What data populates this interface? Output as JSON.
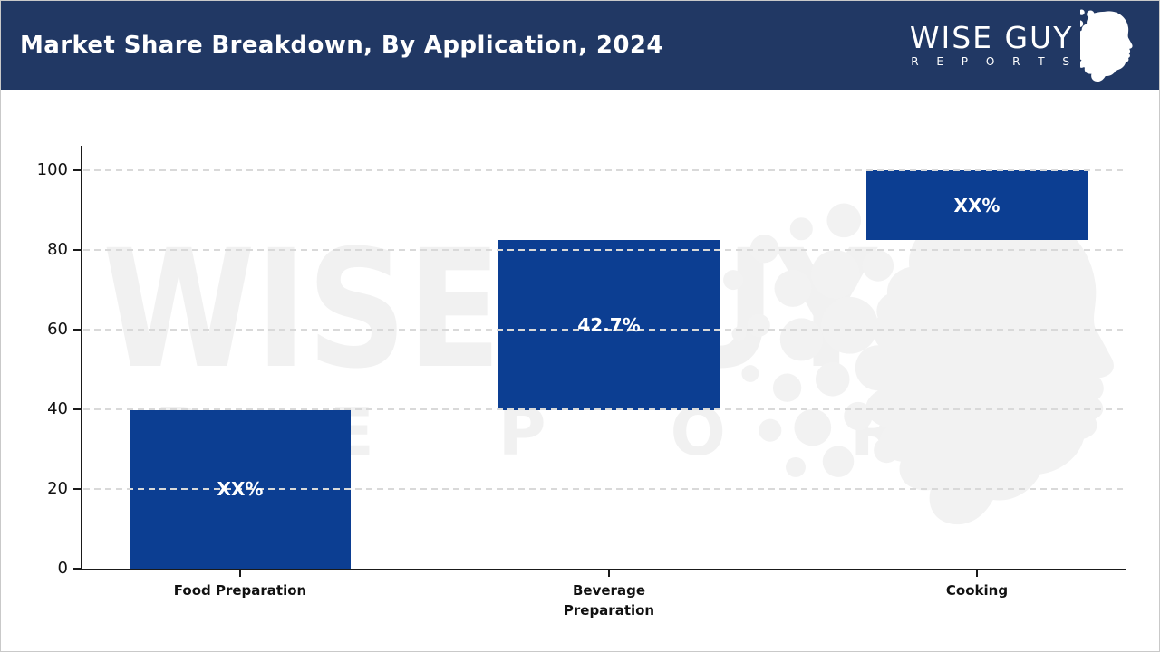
{
  "header": {
    "title": "Market Share Breakdown, By Application, 2024",
    "logo": {
      "brand_line1": "WISE GUY",
      "brand_line2": "R E P O R T S"
    }
  },
  "watermark": {
    "big_text": "WISE GUY",
    "small_text": "R E P O R T S"
  },
  "colors": {
    "header_bg": "#213864",
    "page_bg": "#ffffff",
    "border": "#c9c9c9",
    "watermark": "#f1f1f1",
    "gridline": "#d9d9d9"
  },
  "chart_data": {
    "type": "bar",
    "variant": "waterfall",
    "title": "Market Share Breakdown, By Application, 2024",
    "categories": [
      "Food Preparation",
      "Beverage Preparation",
      "Cooking"
    ],
    "category_label_lines": [
      [
        "Food Preparation"
      ],
      [
        "Beverage",
        "Preparation"
      ],
      [
        "Cooking"
      ]
    ],
    "bars": [
      {
        "category": "Food Preparation",
        "start": 0,
        "end": 39.8,
        "label": "XX%"
      },
      {
        "category": "Beverage Preparation",
        "start": 39.8,
        "end": 82.5,
        "label": "42.7%"
      },
      {
        "category": "Cooking",
        "start": 82.5,
        "end": 100,
        "label": "XX%"
      }
    ],
    "ylim": [
      0,
      100
    ],
    "yticks": [
      0,
      20,
      40,
      60,
      80,
      100
    ],
    "xlabel": "",
    "ylabel": "",
    "legend": "none",
    "grid": {
      "horizontal": true,
      "style": "dashed",
      "drawn_above_bars": true
    },
    "colors": {
      "bar": "#0c3e92",
      "bar_label": "#ffffff",
      "axis": "#1a1a1a",
      "tick_label": "#111111"
    }
  }
}
